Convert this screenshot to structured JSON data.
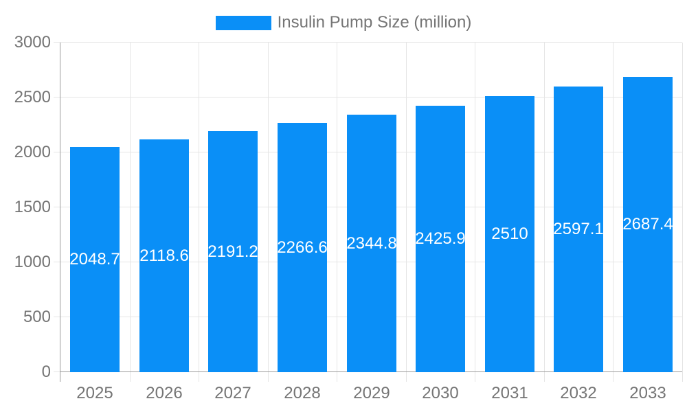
{
  "chart": {
    "colors": {
      "bar": "#0a8ff7",
      "grid": "#e5e5e5",
      "axis": "#9a9a9a",
      "text": "#757575",
      "value_text": "#ffffff",
      "background": "#ffffff"
    }
  },
  "chart_data": {
    "type": "bar",
    "title": "Insulin Pump Size (million)",
    "categories": [
      "2025",
      "2026",
      "2027",
      "2028",
      "2029",
      "2030",
      "2031",
      "2032",
      "2033"
    ],
    "series": [
      {
        "name": "Insulin Pump Size (million)",
        "values": [
          2048.7,
          2118.6,
          2191.2,
          2266.6,
          2344.8,
          2425.9,
          2510,
          2597.1,
          2687.4
        ]
      }
    ],
    "value_labels": [
      "2048.7",
      "2118.6",
      "2191.2",
      "2266.6",
      "2344.8",
      "2425.9",
      "2510",
      "2597.1",
      "2687.4"
    ],
    "xlabel": "",
    "ylabel": "",
    "ylim": [
      0,
      3000
    ],
    "y_ticks": [
      0,
      500,
      1000,
      1500,
      2000,
      2500,
      3000
    ],
    "grid": true,
    "legend_position": "top"
  }
}
